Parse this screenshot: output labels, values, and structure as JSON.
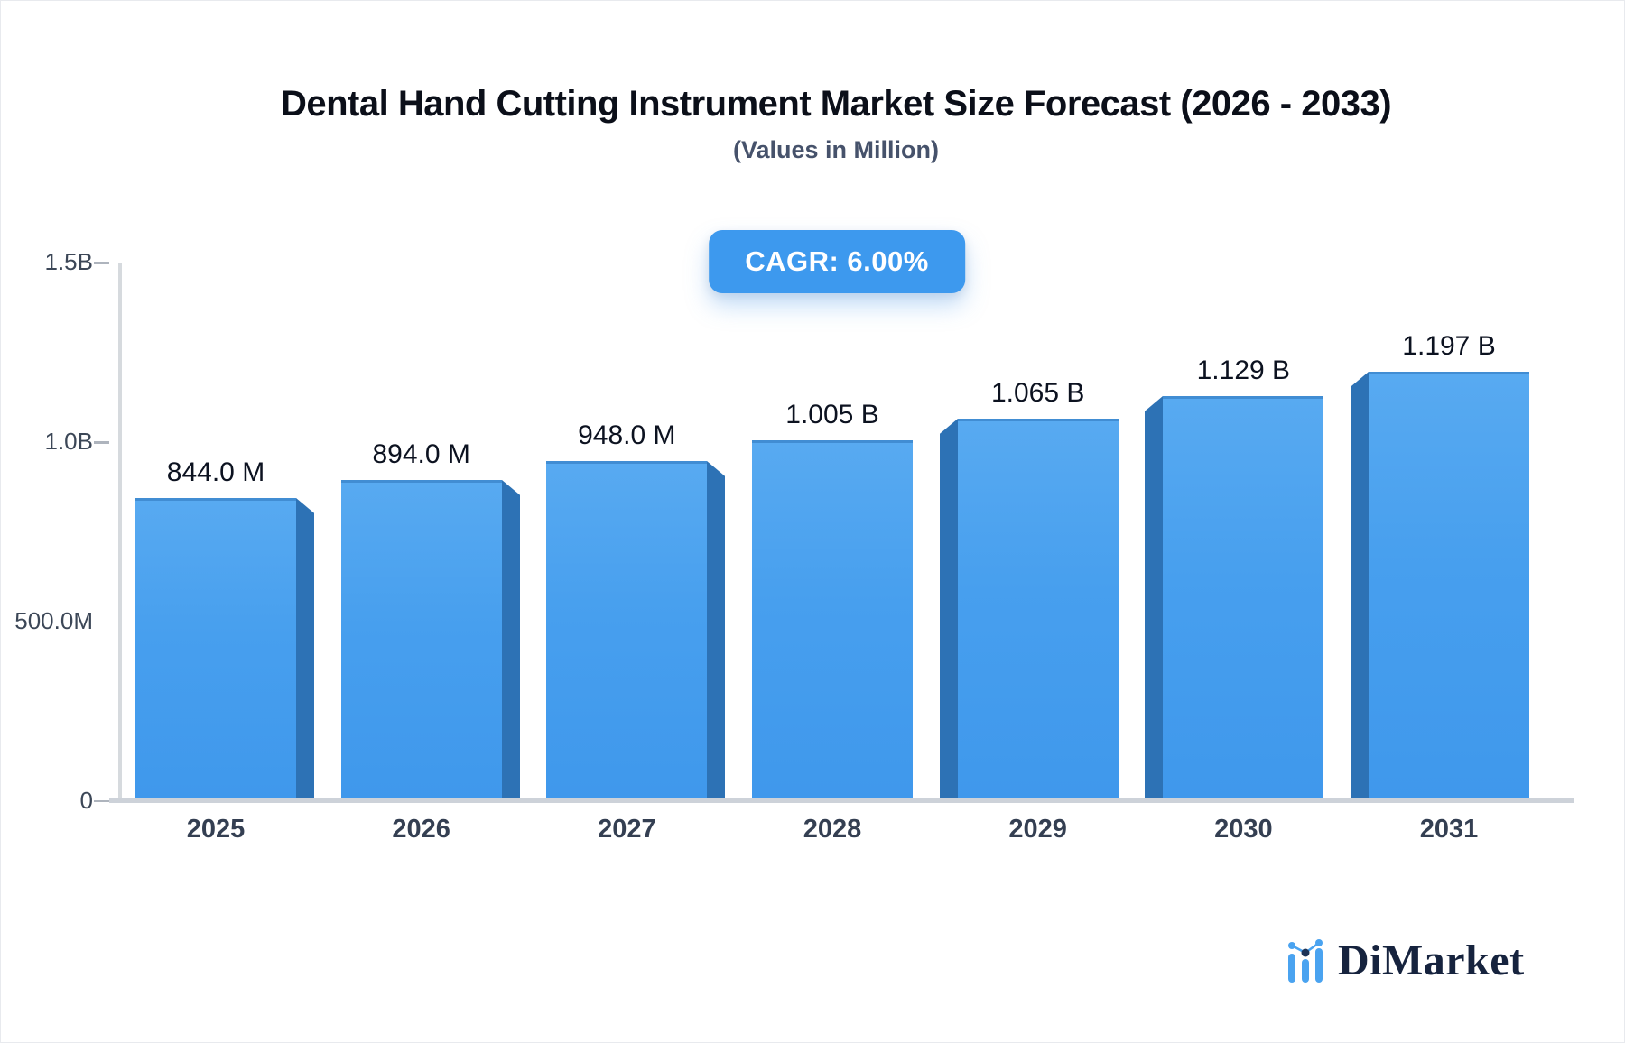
{
  "header": {
    "title": "Dental Hand Cutting Instrument Market Size Forecast (2026 - 2033)",
    "subtitle": "(Values in Million)",
    "badge_label": "CAGR: 6.00%"
  },
  "chart_data": {
    "type": "bar",
    "title": "Dental Hand Cutting Instrument Market Size Forecast (2026 - 2033)",
    "subtitle": "(Values in Million)",
    "cagr": "6.00%",
    "categories": [
      "2025",
      "2026",
      "2027",
      "2028",
      "2029",
      "2030",
      "2031"
    ],
    "values_millions": [
      844.0,
      894.0,
      948.0,
      1005,
      1065,
      1129,
      1197
    ],
    "value_labels": [
      "844.0 M",
      "894.0 M",
      "948.0 M",
      "1.005 B",
      "1.065 B",
      "1.129 B",
      "1.197 B"
    ],
    "ylim_millions": [
      0,
      1500
    ],
    "y_ticks": [
      {
        "label": "1.5B",
        "value_millions": 1500,
        "dash": true
      },
      {
        "label": "1.0B",
        "value_millions": 1000,
        "dash": true
      },
      {
        "label": "500.0M",
        "value_millions": 500,
        "dash": false
      },
      {
        "label": "0",
        "value_millions": 0,
        "dash": true
      }
    ],
    "grid": false,
    "legend": false,
    "style": "3d-bars, blue gradient, center perspective"
  },
  "colors": {
    "bar_front_top": "#58aaf1",
    "bar_front_bottom": "#3f98ec",
    "bar_side": "#2d72b5",
    "badge_bg": "#3d99ee",
    "axis_line": "#d6dade",
    "baseline": "#cdd2d9",
    "value_label": "#0c1220",
    "axis_label": "#3c4757",
    "title": "#0b0f19",
    "subtitle": "#46526b",
    "logo_navy": "#16233e",
    "logo_blue": "#4aa3f0"
  },
  "footer": {
    "logo_text": "DiMarket"
  }
}
